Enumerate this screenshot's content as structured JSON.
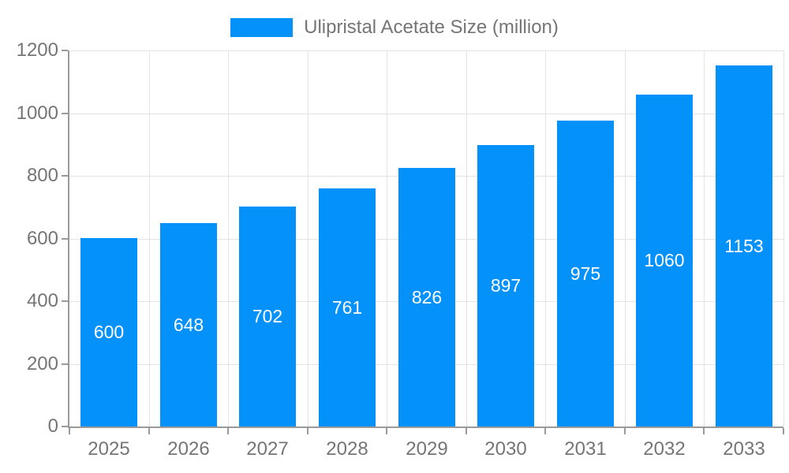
{
  "chart_data": {
    "type": "bar",
    "title": "",
    "legend_label": "Ulipristal Acetate Size (million)",
    "legend_position": "top",
    "categories": [
      "2025",
      "2026",
      "2027",
      "2028",
      "2029",
      "2030",
      "2031",
      "2032",
      "2033"
    ],
    "values": [
      600,
      648,
      702,
      761,
      826,
      897,
      975,
      1060,
      1153
    ],
    "value_labels_visible": true,
    "xlabel": "",
    "ylabel": "",
    "ylim": [
      0,
      1200
    ],
    "ytick_step": 200,
    "ytick_labels": [
      "0",
      "200",
      "400",
      "600",
      "800",
      "1000",
      "1200"
    ],
    "grid": true,
    "bar_color": "#0591fa",
    "value_label_color": "#ffffff",
    "axis_color": "#9a9a9a",
    "grid_color": "#e3e3e3",
    "text_color": "#757575",
    "background_color": "#ffffff"
  }
}
